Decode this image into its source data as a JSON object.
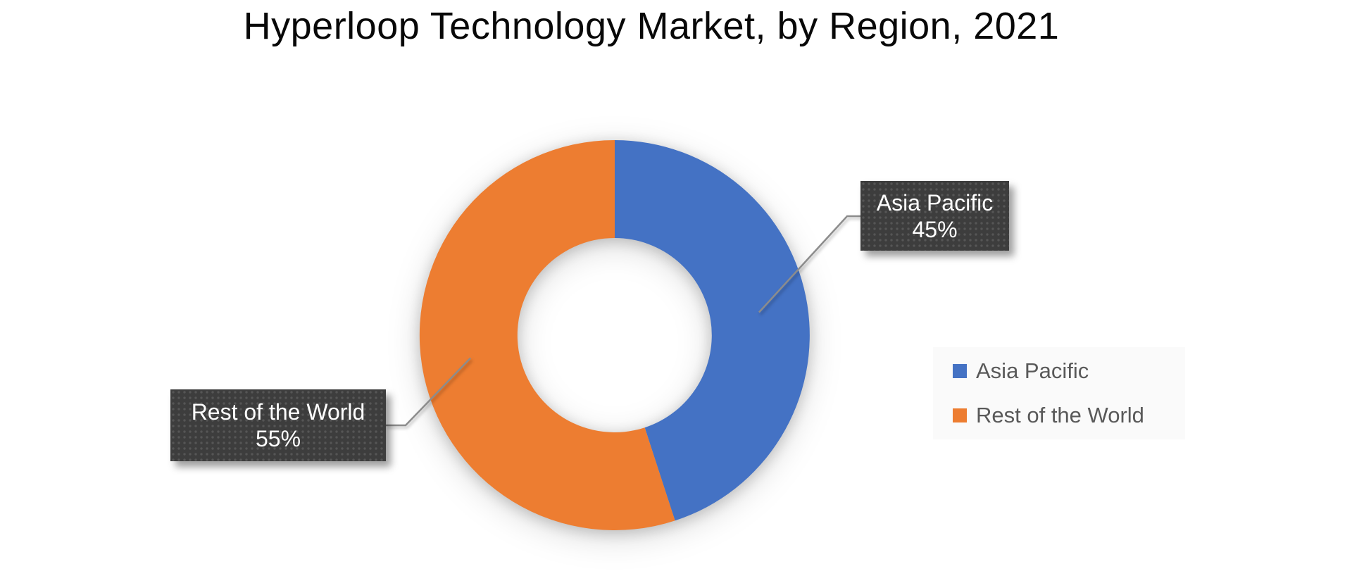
{
  "title": "Hyperloop Technology Market, by Region, 2021",
  "colors": {
    "asia_pacific": "#4472C4",
    "rest_of_world": "#ED7D31",
    "leader_line": "#8C8C8C",
    "callout_bg": "#3D3D3D",
    "callout_text": "#FFFFFF",
    "legend_bg": "#FAFAFA",
    "legend_text": "#595959",
    "title_text": "#080808",
    "background": "#FFFFFF"
  },
  "chart_data": {
    "type": "pie",
    "subtype": "donut",
    "title": "Hyperloop Technology Market, by Region, 2021",
    "categories": [
      "Asia Pacific",
      "Rest of the World"
    ],
    "values": [
      45,
      55
    ],
    "unit": "%",
    "colors": [
      "#4472C4",
      "#ED7D31"
    ],
    "donut_hole_ratio": 0.5,
    "start_angle_deg": 0,
    "direction": "clockwise",
    "legend_position": "right",
    "data_labels": [
      {
        "category": "Asia Pacific",
        "text": "Asia Pacific",
        "value_text": "45%"
      },
      {
        "category": "Rest of the World",
        "text": "Rest of the World",
        "value_text": "55%"
      }
    ]
  },
  "callouts": {
    "asia_pacific": {
      "line1": "Asia Pacific",
      "line2": "45%"
    },
    "rest_of_world": {
      "line1": "Rest of the World",
      "line2": "55%"
    }
  },
  "legend": {
    "items": [
      {
        "label": "Asia Pacific",
        "color": "#4472C4"
      },
      {
        "label": "Rest of the World",
        "color": "#ED7D31"
      }
    ]
  }
}
